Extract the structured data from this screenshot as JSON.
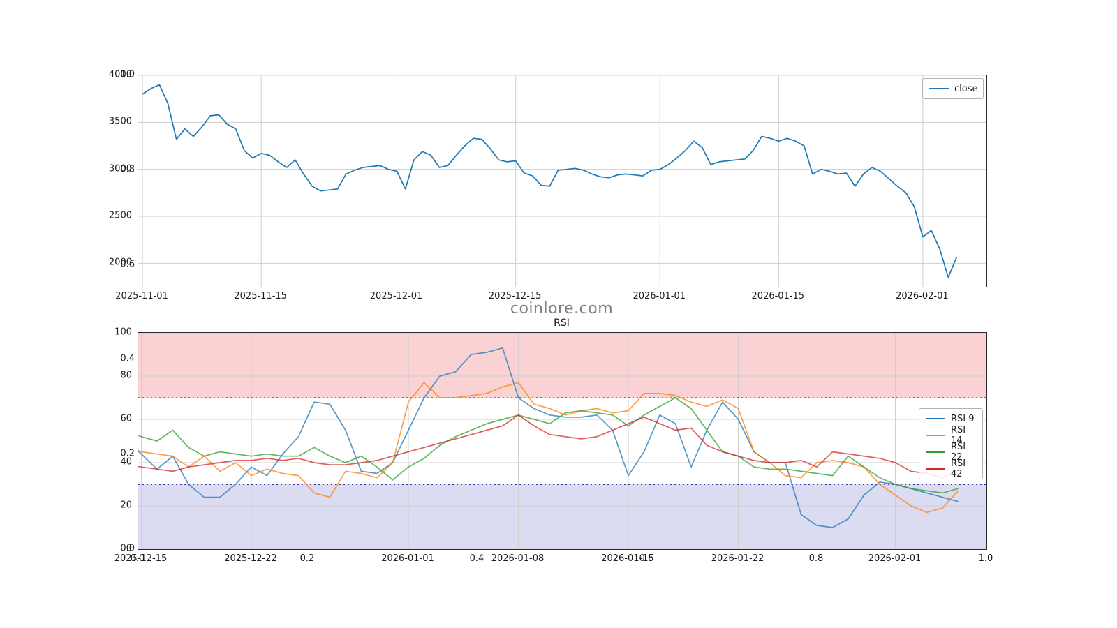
{
  "watermark": "coinlore.com",
  "overlay_axis": {
    "note": "background axes with fractional ticks overlapping the chart labels",
    "x_ticks": [
      "0.0",
      "0.2",
      "0.4",
      "0.6",
      "0.8",
      "1.0"
    ],
    "y_ticks": [
      "0.0",
      "0.2",
      "0.4",
      "0.6",
      "0.8",
      "1.0"
    ]
  },
  "chart_data": [
    {
      "type": "line",
      "title": "",
      "start_date": "2025-11-01",
      "frequency": "daily",
      "xlim_days": [
        -0.5,
        99.5
      ],
      "ylim": [
        1750,
        4000
      ],
      "grid": true,
      "y_ticks": [
        2000,
        2500,
        3000,
        3500,
        4000
      ],
      "x_ticks": [
        {
          "day": 0,
          "label": "2025-11-01"
        },
        {
          "day": 14,
          "label": "2025-11-15"
        },
        {
          "day": 30,
          "label": "2025-12-01"
        },
        {
          "day": 44,
          "label": "2025-12-15"
        },
        {
          "day": 61,
          "label": "2026-01-01"
        },
        {
          "day": 75,
          "label": "2026-01-15"
        },
        {
          "day": 92,
          "label": "2026-02-01"
        }
      ],
      "legend": {
        "position": "upper right",
        "entries": [
          "close"
        ]
      },
      "series": [
        {
          "name": "close",
          "color": "#1f77b4",
          "opacity": 1,
          "values": [
            3800,
            3860,
            3900,
            3700,
            3320,
            3430,
            3350,
            3450,
            3570,
            3580,
            3480,
            3430,
            3200,
            3120,
            3170,
            3150,
            3080,
            3020,
            3100,
            2950,
            2820,
            2770,
            2780,
            2790,
            2950,
            2990,
            3020,
            3030,
            3040,
            3000,
            2980,
            2790,
            3100,
            3190,
            3150,
            3020,
            3040,
            3150,
            3250,
            3330,
            3320,
            3220,
            3100,
            3080,
            3090,
            2960,
            2930,
            2830,
            2820,
            2990,
            3000,
            3010,
            2990,
            2950,
            2920,
            2910,
            2940,
            2950,
            2940,
            2930,
            2990,
            3000,
            3050,
            3120,
            3200,
            3300,
            3230,
            3050,
            3080,
            3090,
            3100,
            3110,
            3200,
            3350,
            3330,
            3300,
            3330,
            3300,
            3250,
            2950,
            3000,
            2980,
            2950,
            2960,
            2820,
            2950,
            3020,
            2980,
            2900,
            2820,
            2750,
            2600,
            2280,
            2350,
            2150,
            1850,
            2070
          ]
        }
      ]
    },
    {
      "type": "line",
      "title": "RSI",
      "start_date": "2025-12-14",
      "frequency": "daily",
      "xlim_days": [
        0.8,
        54.8
      ],
      "ylim": [
        0,
        100
      ],
      "grid": true,
      "y_ticks": [
        0,
        20,
        40,
        60,
        80,
        100
      ],
      "x_ticks": [
        {
          "day": 1,
          "label": "2025-12-15"
        },
        {
          "day": 8,
          "label": "2025-12-22"
        },
        {
          "day": 18,
          "label": "2026-01-01"
        },
        {
          "day": 25,
          "label": "2026-01-08"
        },
        {
          "day": 32,
          "label": "2026-01-15"
        },
        {
          "day": 39,
          "label": "2026-01-22"
        },
        {
          "day": 49,
          "label": "2026-02-01"
        }
      ],
      "bands": [
        {
          "from": 70,
          "to": 100,
          "color": "#fbd2d3",
          "meaning": "overbought zone"
        },
        {
          "from": 0,
          "to": 30,
          "color": "#dbdbf2",
          "meaning": "oversold zone"
        }
      ],
      "hlines": [
        {
          "y": 70,
          "color": "#e02020",
          "style": "dotted",
          "meaning": "overbought threshold"
        },
        {
          "y": 30,
          "color": "#00008b",
          "style": "dotted",
          "meaning": "oversold threshold"
        }
      ],
      "legend": {
        "position": "center right",
        "entries": [
          "RSI 9",
          "RSI 14",
          "RSI 22",
          "RSI 42"
        ]
      },
      "series": [
        {
          "name": "RSI 9",
          "color": "#1f77b4",
          "opacity": 0.75,
          "values": [
            50,
            44,
            37,
            43,
            30,
            24,
            24,
            30,
            38,
            34,
            44,
            52,
            68,
            67,
            55,
            36,
            35,
            40,
            55,
            70,
            80,
            82,
            90,
            91,
            93,
            70,
            65,
            62,
            61,
            61,
            62,
            55,
            34,
            45,
            62,
            58,
            38,
            55,
            68,
            60,
            45,
            40,
            40,
            16,
            11,
            10,
            14,
            25,
            31,
            30,
            28,
            26,
            24,
            22
          ]
        },
        {
          "name": "RSI 14",
          "color": "#ff7f0e",
          "opacity": 0.75,
          "values": [
            48,
            45,
            44,
            43,
            38,
            43,
            36,
            40,
            34,
            37,
            35,
            34,
            26,
            24,
            36,
            35,
            33,
            40,
            68,
            77,
            70,
            70,
            71,
            72,
            75,
            77,
            67,
            65,
            62,
            64,
            65,
            63,
            64,
            72,
            72,
            71,
            68,
            66,
            69,
            65,
            45,
            40,
            34,
            33,
            40,
            41,
            40,
            38,
            30,
            25,
            20,
            17,
            19,
            27
          ]
        },
        {
          "name": "RSI 22",
          "color": "#2ca02c",
          "opacity": 0.75,
          "values": [
            55,
            52,
            50,
            55,
            47,
            43,
            45,
            44,
            43,
            44,
            43,
            43,
            47,
            43,
            40,
            43,
            38,
            32,
            38,
            42,
            48,
            52,
            55,
            58,
            60,
            62,
            60,
            58,
            63,
            64,
            63,
            62,
            57,
            62,
            66,
            70,
            65,
            55,
            45,
            43,
            38,
            37,
            37,
            36,
            35,
            34,
            43,
            38,
            33,
            30,
            28,
            27,
            26,
            28
          ]
        },
        {
          "name": "RSI 42",
          "color": "#d62728",
          "opacity": 0.75,
          "values": [
            39,
            38,
            37,
            36,
            38,
            39,
            40,
            41,
            41,
            42,
            41,
            42,
            40,
            39,
            39,
            40,
            41,
            43,
            45,
            47,
            49,
            51,
            53,
            55,
            57,
            62,
            57,
            53,
            52,
            51,
            52,
            55,
            58,
            61,
            58,
            55,
            56,
            48,
            45,
            43,
            41,
            40,
            40,
            41,
            38,
            45,
            44,
            43,
            42,
            40,
            36,
            35,
            33,
            37
          ]
        }
      ]
    }
  ]
}
